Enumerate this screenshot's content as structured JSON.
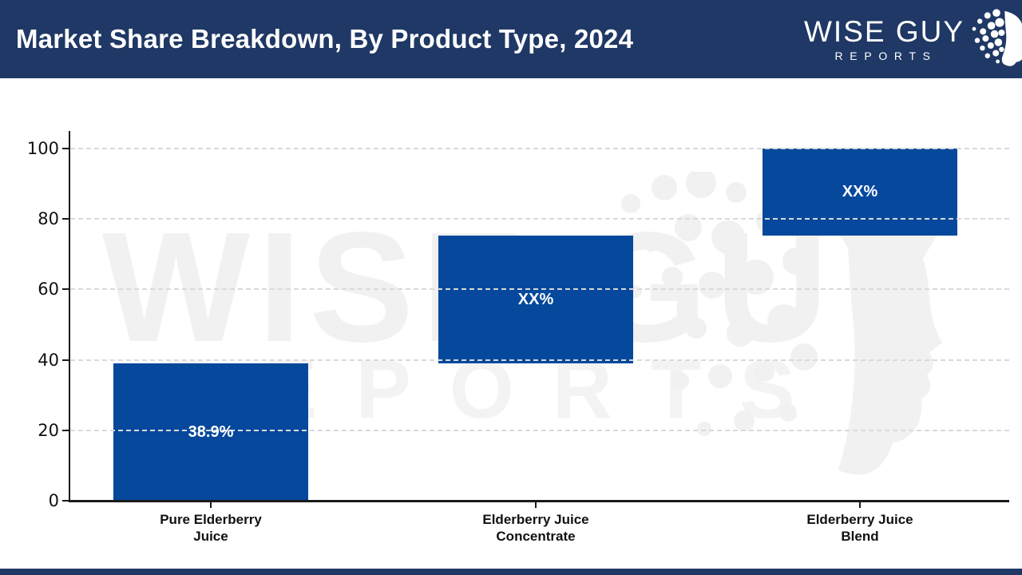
{
  "header": {
    "title": "Market Share Breakdown, By Product Type, 2024",
    "logo": {
      "brand_line1": "WISE GUY",
      "brand_line2": "REPORTS"
    }
  },
  "watermark": {
    "line1": "WISE GUY",
    "line2": "REPORTS"
  },
  "chart_data": {
    "type": "bar",
    "subtype": "stacked-breakdown-waterfall",
    "title": "Market Share Breakdown, By Product Type, 2024",
    "categories": [
      "Pure Elderberry\nJuice",
      "Elderberry Juice\nConcentrate",
      "Elderberry Juice\nBlend"
    ],
    "segments": [
      {
        "category": "Pure Elderberry\nJuice",
        "start": 0,
        "end": 38.9,
        "value_label": "38.9%"
      },
      {
        "category": "Elderberry Juice\nConcentrate",
        "start": 38.9,
        "end": 75.2,
        "value_label": "XX%"
      },
      {
        "category": "Elderberry Juice\nBlend",
        "start": 75.2,
        "end": 100,
        "value_label": "XX%"
      }
    ],
    "ylim": [
      0,
      100
    ],
    "yticks": [
      "0",
      "20",
      "40",
      "60",
      "80",
      "100"
    ],
    "grid": "horizontal dashed",
    "legend": "none",
    "bar_color": "#05489C"
  },
  "colors": {
    "header_bg": "#1F3865",
    "footer_bg": "#1F3865",
    "bar": "#05489C",
    "gridline": "#D9D9D9",
    "axis": "#1A1A1A",
    "watermark": "#F1F1F1",
    "value_label": "#FFFFFF"
  }
}
